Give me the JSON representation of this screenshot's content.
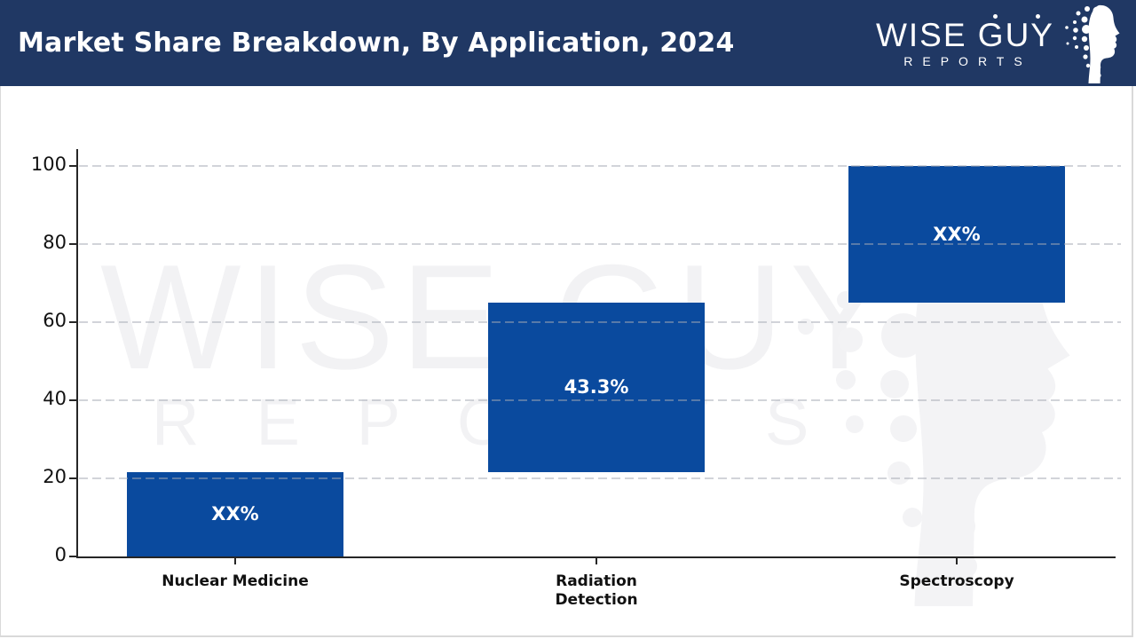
{
  "header": {
    "title": "Market Share Breakdown, By Application, 2024",
    "logo": {
      "wordmark": "WISE GUY",
      "subtext": "REPORTS"
    }
  },
  "watermark": {
    "line1": "WISE GUY",
    "line2": "REPORTS"
  },
  "chart_data": {
    "type": "bar",
    "subtype": "waterfall",
    "title": "Market Share Breakdown, By Application, 2024",
    "categories": [
      "Nuclear Medicine",
      "Radiation Detection",
      "Spectroscopy"
    ],
    "x_tick_display": [
      "Nuclear Medicine",
      "Radiation\nDetection",
      "Spectroscopy"
    ],
    "segments": [
      {
        "category": "Nuclear Medicine",
        "start": 0,
        "end": 21.7,
        "label": "XX%"
      },
      {
        "category": "Radiation Detection",
        "start": 21.7,
        "end": 65,
        "label": "43.3%"
      },
      {
        "category": "Spectroscopy",
        "start": 65,
        "end": 100,
        "label": "XX%"
      }
    ],
    "ylim": [
      0,
      100
    ],
    "yticks": [
      0,
      20,
      40,
      60,
      80,
      100
    ],
    "ytick_labels": [
      "0",
      "20",
      "40",
      "60",
      "80",
      "100"
    ],
    "grid": "dashed-horizontal",
    "legend": "none",
    "xlabel": "",
    "ylabel": ""
  },
  "colors": {
    "header_bg": "#203864",
    "bar_fill": "#0a4a9e",
    "axis": "#262626",
    "grid_rgba": "rgba(165,170,180,0.5)",
    "tick_text": "#111111",
    "bar_label_text": "#ffffff",
    "watermark": "#f2f2f4",
    "card_border": "#d9d9d9"
  }
}
